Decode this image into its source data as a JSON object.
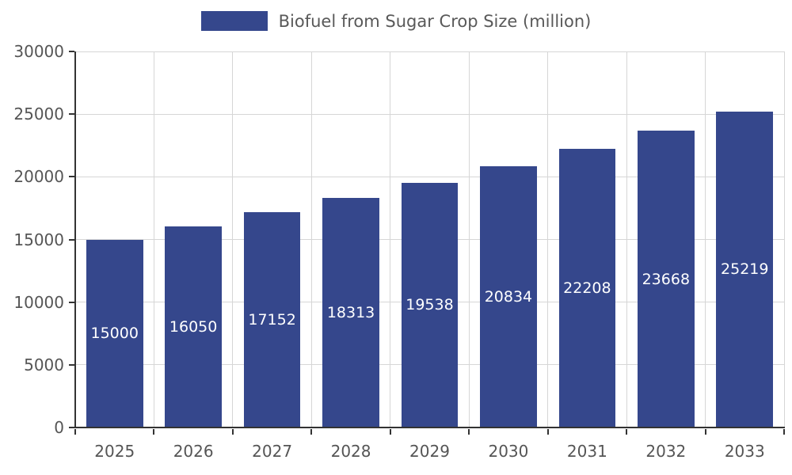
{
  "legend": {
    "label": "Biofuel from Sugar Crop Size (million)",
    "swatch_color": "#35478C"
  },
  "chart_data": {
    "type": "bar",
    "title": "Biofuel from Sugar Crop Size (million)",
    "categories": [
      "2025",
      "2026",
      "2027",
      "2028",
      "2029",
      "2030",
      "2031",
      "2032",
      "2033"
    ],
    "values": [
      15000,
      16050,
      17152,
      18313,
      19538,
      20834,
      22208,
      23668,
      25219
    ],
    "xlabel": "",
    "ylabel": "",
    "ylim": [
      0,
      30000
    ],
    "yticks": [
      0,
      5000,
      10000,
      15000,
      20000,
      25000,
      30000
    ],
    "grid": true,
    "legend_position": "top",
    "bar_color": "#35478C",
    "value_label_color": "#ffffff",
    "axis_color": "#333333",
    "grid_color": "#d6d6d6",
    "tick_label_color": "#555555"
  }
}
